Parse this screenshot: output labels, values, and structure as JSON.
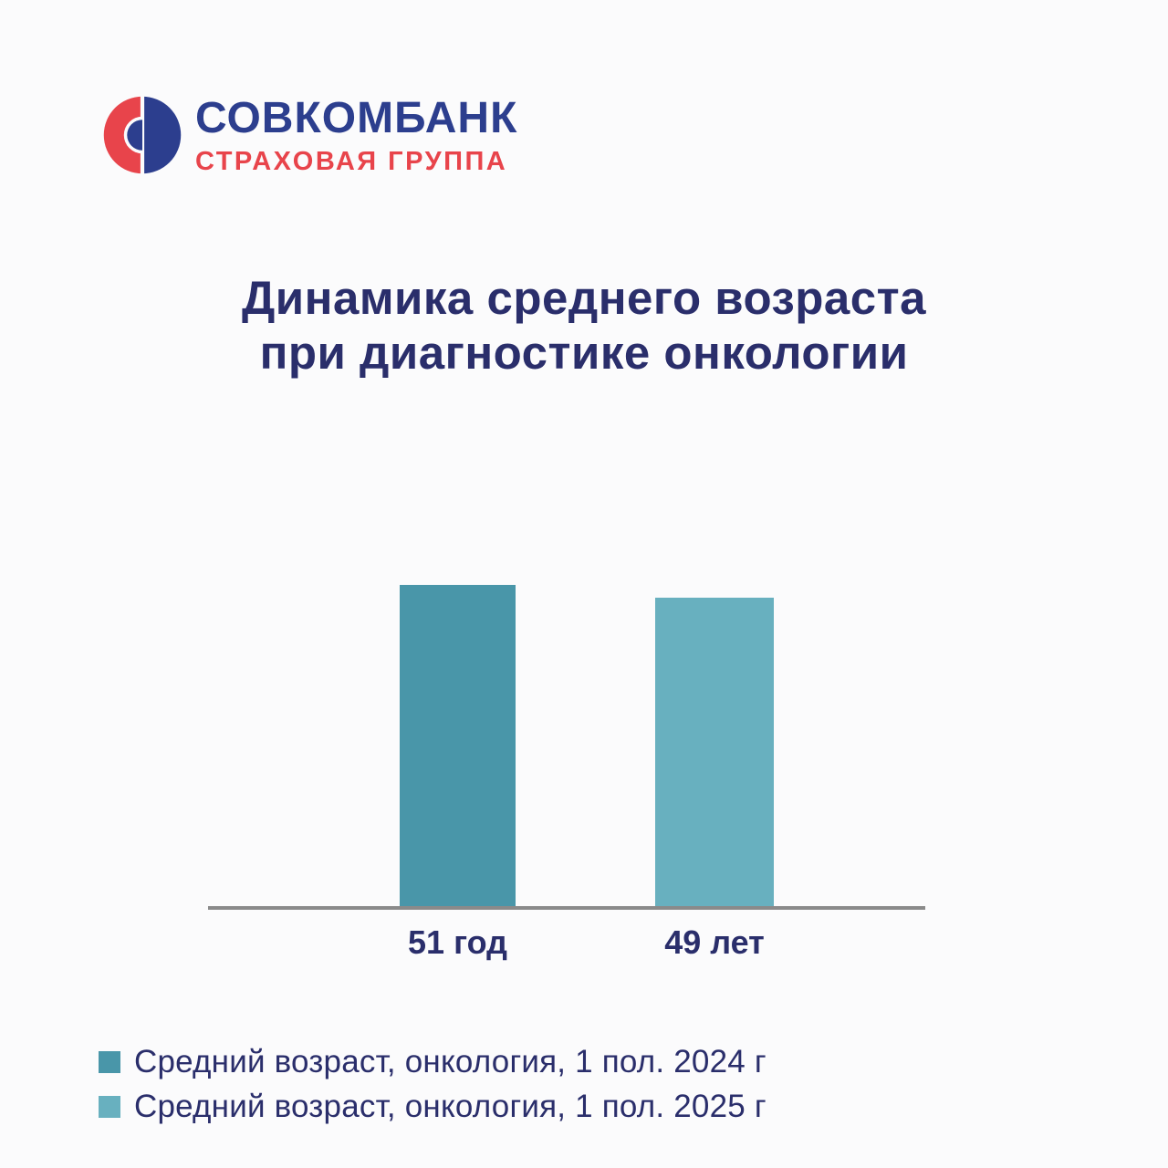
{
  "brand": {
    "name": "СОВКОМБАНК",
    "tagline": "СТРАХОВАЯ ГРУППА",
    "name_color": "#2c3e8e",
    "tagline_color": "#e8444b"
  },
  "title": {
    "line1": "Динамика среднего возраста",
    "line2": "при диагностике онкологии"
  },
  "chart_data": {
    "type": "bar",
    "title": "Динамика среднего возраста при диагностике онкологии",
    "categories": [
      "1 пол. 2024 г",
      "1 пол. 2025 г"
    ],
    "values": [
      51,
      49
    ],
    "value_labels": [
      "51 год",
      "49 лет"
    ],
    "series": [
      {
        "name": "Средний возраст, онкология, 1 пол. 2024 г",
        "value": 51,
        "color": "#4996a9"
      },
      {
        "name": "Средний возраст, онкология, 1 пол. 2025 г",
        "value": 49,
        "color": "#68b0bf"
      }
    ],
    "ylabel": "",
    "xlabel": "",
    "ylim": [
      0,
      55
    ],
    "grid": false,
    "baseline_color": "#8a8a8a",
    "text_color": "#2a2e6b",
    "legend_position": "bottom-left"
  }
}
